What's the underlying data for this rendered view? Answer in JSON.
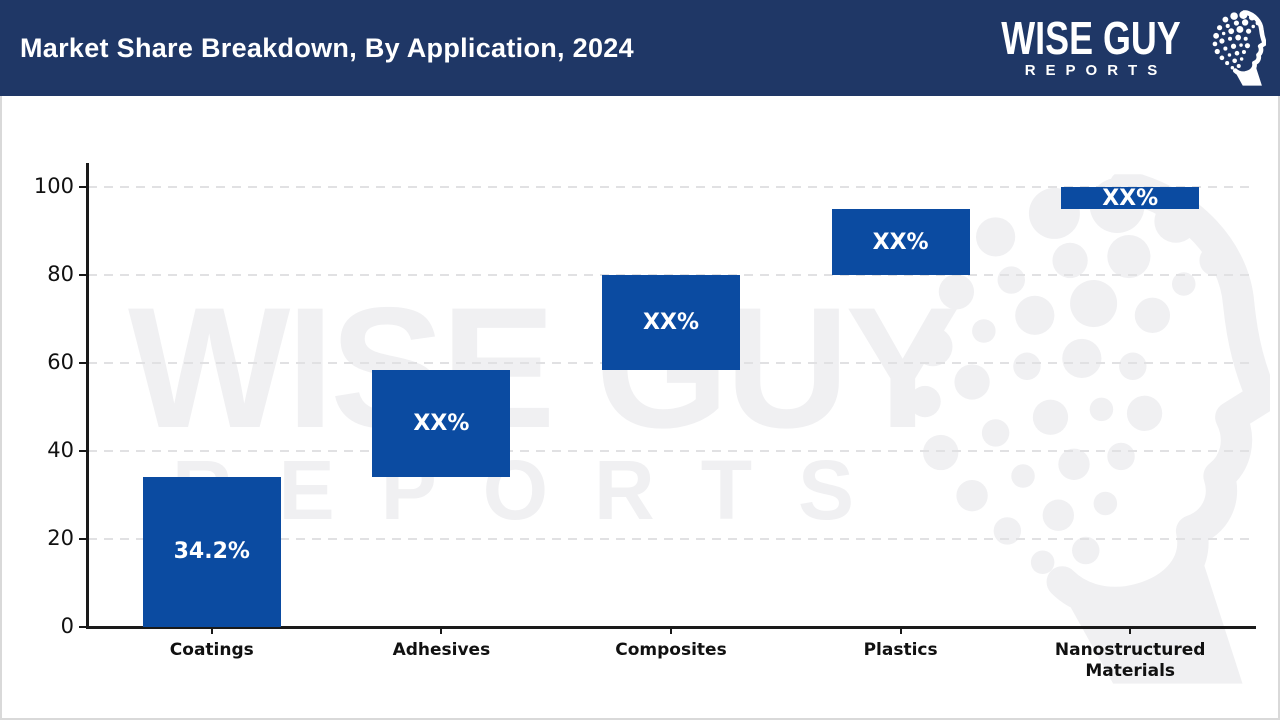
{
  "header": {
    "title": "Market Share Breakdown, By Application, 2024",
    "background_color": "#1f3766",
    "logo": {
      "line1": "WISE GUY",
      "line2": "REPORTS"
    }
  },
  "watermark": {
    "line1": "WISE GUY",
    "line2": "REPORTS"
  },
  "chart_data": {
    "type": "bar",
    "subtype": "waterfall",
    "title": "Market Share Breakdown, By Application, 2024",
    "categories": [
      "Coatings",
      "Adhesives",
      "Composites",
      "Plastics",
      "Nanostructured Materials"
    ],
    "bars": [
      {
        "category": "Coatings",
        "start": 0,
        "end": 34.2,
        "label": "34.2%"
      },
      {
        "category": "Adhesives",
        "start": 34.2,
        "end": 58.5,
        "label": "XX%"
      },
      {
        "category": "Composites",
        "start": 58.5,
        "end": 80,
        "label": "XX%"
      },
      {
        "category": "Plastics",
        "start": 80,
        "end": 95,
        "label": "XX%"
      },
      {
        "category": "Nanostructured Materials",
        "start": 95,
        "end": 100,
        "label": "XX%"
      }
    ],
    "ylim": [
      0,
      100
    ],
    "yticks": [
      0,
      20,
      40,
      60,
      80,
      100
    ],
    "bar_color": "#0b4ba1",
    "grid": "horizontal-dashed",
    "legend": "none",
    "xlabel": "",
    "ylabel": ""
  }
}
